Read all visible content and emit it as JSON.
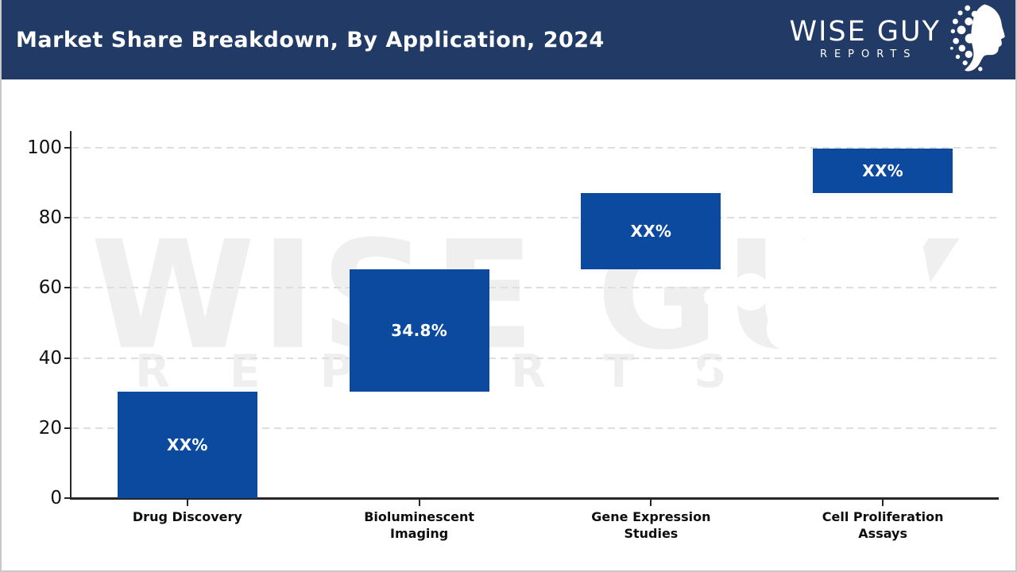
{
  "header": {
    "title": "Market Share Breakdown, By Application, 2024",
    "logo": {
      "primary": "WISE GUY",
      "secondary": "REPORTS"
    }
  },
  "watermark": {
    "primary": "WISE GUY",
    "secondary": "REPORTS"
  },
  "colors": {
    "header_bg": "#213a66",
    "bar": "#0b4a9e",
    "axis": "#262626",
    "gridline": "#dedede",
    "watermark": "#efefef",
    "bar_label_text": "#ffffff",
    "tick_text": "#111111",
    "page_border": "#c8c8c8"
  },
  "chart_data": {
    "type": "bar",
    "variant": "floating-waterfall",
    "title": "Market Share Breakdown, By Application, 2024",
    "categories": [
      "Drug Discovery",
      "Bioluminescent Imaging",
      "Gene Expression Studies",
      "Cell Proliferation Assays"
    ],
    "category_lines": [
      [
        "Drug Discovery"
      ],
      [
        "Bioluminescent",
        "Imaging"
      ],
      [
        "Gene Expression",
        "Studies"
      ],
      [
        "Cell Proliferation",
        "Assays"
      ]
    ],
    "bars": [
      {
        "category": "Drug Discovery",
        "start": 0,
        "end": 30.4,
        "height": 30.4,
        "value_label": "XX%"
      },
      {
        "category": "Bioluminescent Imaging",
        "start": 30.4,
        "end": 65.2,
        "height": 34.8,
        "value_label": "34.8%"
      },
      {
        "category": "Gene Expression Studies",
        "start": 65.2,
        "end": 87.0,
        "height": 21.8,
        "value_label": "XX%"
      },
      {
        "category": "Cell Proliferation Assays",
        "start": 87.0,
        "end": 99.8,
        "height": 12.8,
        "value_label": "XX%"
      }
    ],
    "yticks": [
      0,
      20,
      40,
      60,
      80,
      100
    ],
    "ylim": [
      0,
      104.8
    ],
    "xlabel": "",
    "ylabel": "",
    "grid": "horizontal-dashed",
    "legend": "none"
  }
}
